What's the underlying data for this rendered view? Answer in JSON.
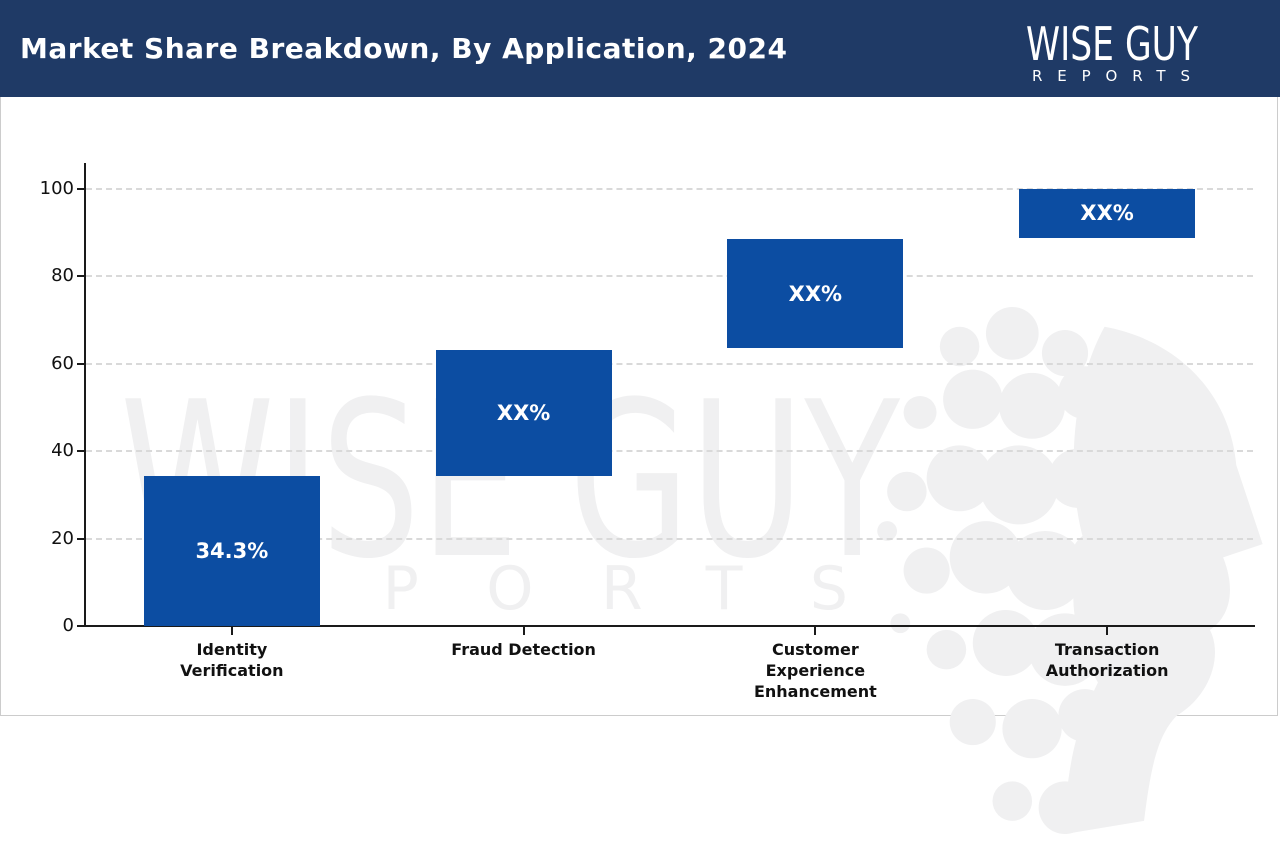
{
  "header": {
    "title": "Market Share Breakdown, By Application, 2024",
    "logo": {
      "name": "WISE GUY",
      "sub": "REPORTS"
    }
  },
  "watermark": {
    "line1": "WISE GUY",
    "line2": "REPORTS"
  },
  "colors": {
    "header_bg": "#1f3a66",
    "bar": "#0c4da2",
    "bar_label": "#ffffff",
    "axis": "#1a1a1a",
    "grid": "#d9d9d9",
    "watermark": "#f0f0f1",
    "card_border": "#cccccc"
  },
  "chart_data": {
    "type": "bar",
    "subtype": "waterfall",
    "title": "Market Share Breakdown, By Application, 2024",
    "xlabel": "",
    "ylabel": "",
    "ylim": [
      0,
      105
    ],
    "y_ticks": [
      0,
      20,
      40,
      60,
      80,
      100
    ],
    "grid": "horizontal-dashed",
    "legend": "none",
    "categories": [
      "Identity Verification",
      "Fraud Detection",
      "Customer Experience Enhancement",
      "Transaction Authorization"
    ],
    "category_lines": [
      [
        "Identity",
        "Verification"
      ],
      [
        "Fraud Detection"
      ],
      [
        "Customer",
        "Experience",
        "Enhancement"
      ],
      [
        "Transaction",
        "Authorization"
      ]
    ],
    "segments": [
      {
        "category": "Identity Verification",
        "label": "34.3%",
        "start": 0,
        "end": 34.3
      },
      {
        "category": "Fraud Detection",
        "label": "XX%",
        "start": 34.3,
        "end": 63
      },
      {
        "category": "Customer Experience Enhancement",
        "label": "XX%",
        "start": 63.5,
        "end": 88.5
      },
      {
        "category": "Transaction Authorization",
        "label": "XX%",
        "start": 88.8,
        "end": 100
      }
    ]
  }
}
